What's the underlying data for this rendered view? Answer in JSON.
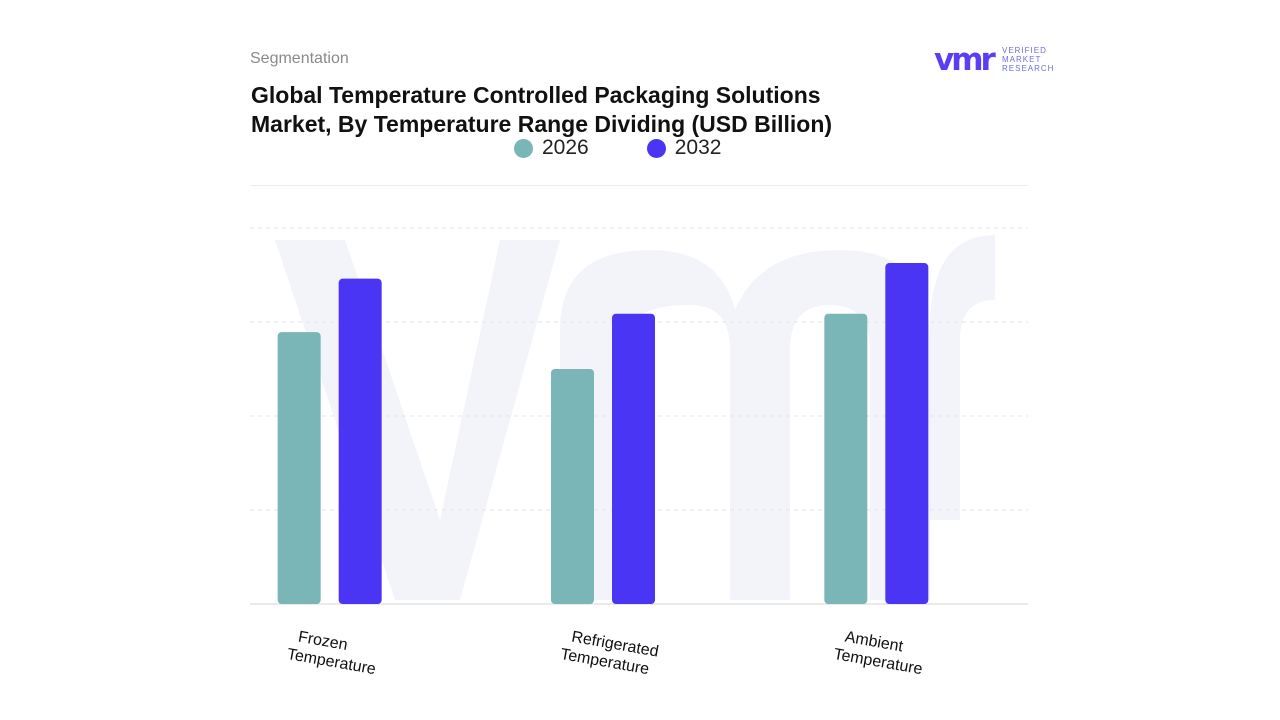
{
  "header": {
    "segment_label": "Segmentation",
    "title": "Global Temperature Controlled Packaging Solutions Market, By Temperature Range Dividing (USD Billion)"
  },
  "logo": {
    "mark": "vmr",
    "line1": "VERIFIED",
    "line2": "MARKET",
    "line3": "RESEARCH",
    "color": "#5a3df5",
    "text_color": "#6d6fe0"
  },
  "colors": {
    "series_2026": "#7ab5b8",
    "series_2032": "#4b35f5",
    "grid": "#e6e6e6",
    "watermark": "#f3f4fa"
  },
  "chart_data": {
    "type": "bar",
    "title": "Global Temperature Controlled Packaging Solutions Market, By Temperature Range Dividing (USD Billion)",
    "categories": [
      [
        "Frozen",
        "Temperature"
      ],
      [
        "Refrigerated",
        "Temperature"
      ],
      [
        "Ambient",
        "Temperature"
      ]
    ],
    "series": [
      {
        "name": "2026",
        "values": [
          2.95,
          2.55,
          3.15
        ]
      },
      {
        "name": "2032",
        "values": [
          3.53,
          3.15,
          3.7
        ]
      }
    ],
    "xlabel": "",
    "ylabel": "",
    "ylim": [
      0,
      4.08
    ],
    "grid": true,
    "legend": "top-center"
  }
}
